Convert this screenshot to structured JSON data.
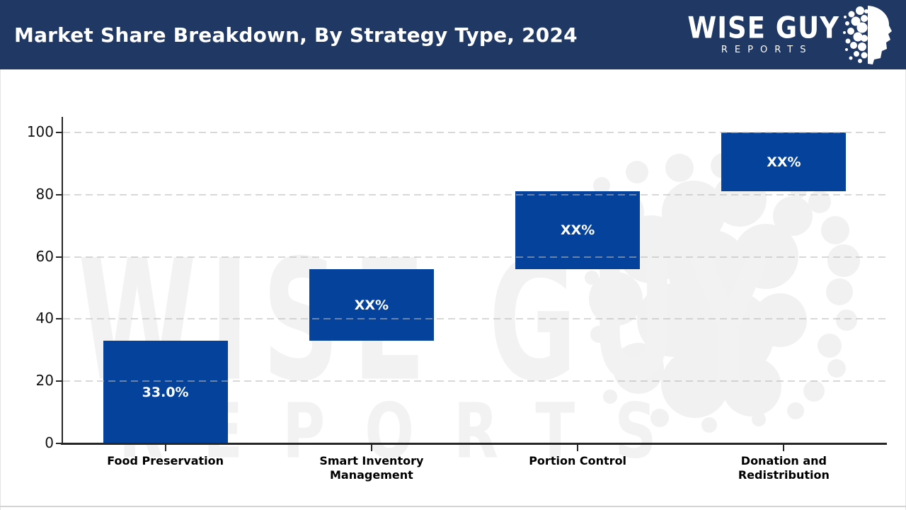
{
  "header": {
    "title": "Market Share Breakdown, By Strategy Type, 2024",
    "brand": {
      "line1": "WISE GUY",
      "line2": "REPORTS"
    }
  },
  "watermark": {
    "line1": "WISE GUY",
    "line2": "REPORTS"
  },
  "colors": {
    "header_bg": "#203864",
    "bar": "#05429C",
    "axis": "#262626",
    "gridline": "#d9d9d9",
    "value_label": "#ffffff",
    "watermark": "#f2f2f2"
  },
  "chart_data": {
    "type": "bar",
    "subtype": "waterfall-floating-bars",
    "title": "Market Share Breakdown, By Strategy Type, 2024",
    "xlabel": "",
    "ylabel": "",
    "ylim": [
      0,
      100
    ],
    "y_ticks": [
      0,
      20,
      40,
      60,
      80,
      100
    ],
    "grid": "horizontal dashed",
    "legend": "none",
    "categories": [
      "Food Preservation",
      "Smart Inventory Management",
      "Portion Control",
      "Donation and Redistribution"
    ],
    "category_lines": [
      [
        "Food Preservation"
      ],
      [
        "Smart Inventory",
        "Management"
      ],
      [
        "Portion Control"
      ],
      [
        "Donation and",
        "Redistribution"
      ]
    ],
    "segments": [
      {
        "category": "Food Preservation",
        "start": 0,
        "end": 33,
        "value": 33,
        "label": "33.0%"
      },
      {
        "category": "Smart Inventory Management",
        "start": 33,
        "end": 56,
        "value": 23,
        "label": "XX%"
      },
      {
        "category": "Portion Control",
        "start": 56,
        "end": 81,
        "value": 25,
        "label": "XX%"
      },
      {
        "category": "Donation and Redistribution",
        "start": 81,
        "end": 100,
        "value": 19,
        "label": "XX%"
      }
    ]
  }
}
